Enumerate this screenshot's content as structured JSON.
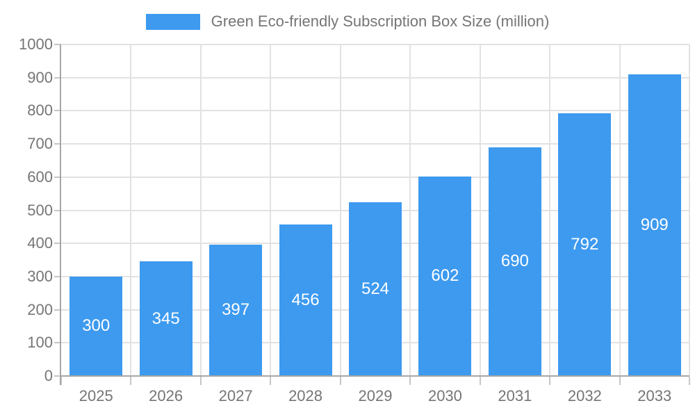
{
  "legend": {
    "label": "Green Eco-friendly Subscription Box Size (million)"
  },
  "chart_data": {
    "type": "bar",
    "title": "Green Eco-friendly Subscription Box Size (million)",
    "categories": [
      "2025",
      "2026",
      "2027",
      "2028",
      "2029",
      "2030",
      "2031",
      "2032",
      "2033"
    ],
    "values": [
      300,
      345,
      397,
      456,
      524,
      602,
      690,
      792,
      909
    ],
    "xlabel": "",
    "ylabel": "",
    "ylim": [
      0,
      1000
    ],
    "y_ticks": [
      0,
      100,
      200,
      300,
      400,
      500,
      600,
      700,
      800,
      900,
      1000
    ],
    "grid": true,
    "legend_position": "top",
    "bar_color": "#3D9AEF",
    "value_label_color": "#ffffff"
  },
  "colors": {
    "background": "#ffffff",
    "grid": "#e2e2e2",
    "axis": "#a6a6a6",
    "tick": "#c6c6c6",
    "text": "#757575"
  }
}
